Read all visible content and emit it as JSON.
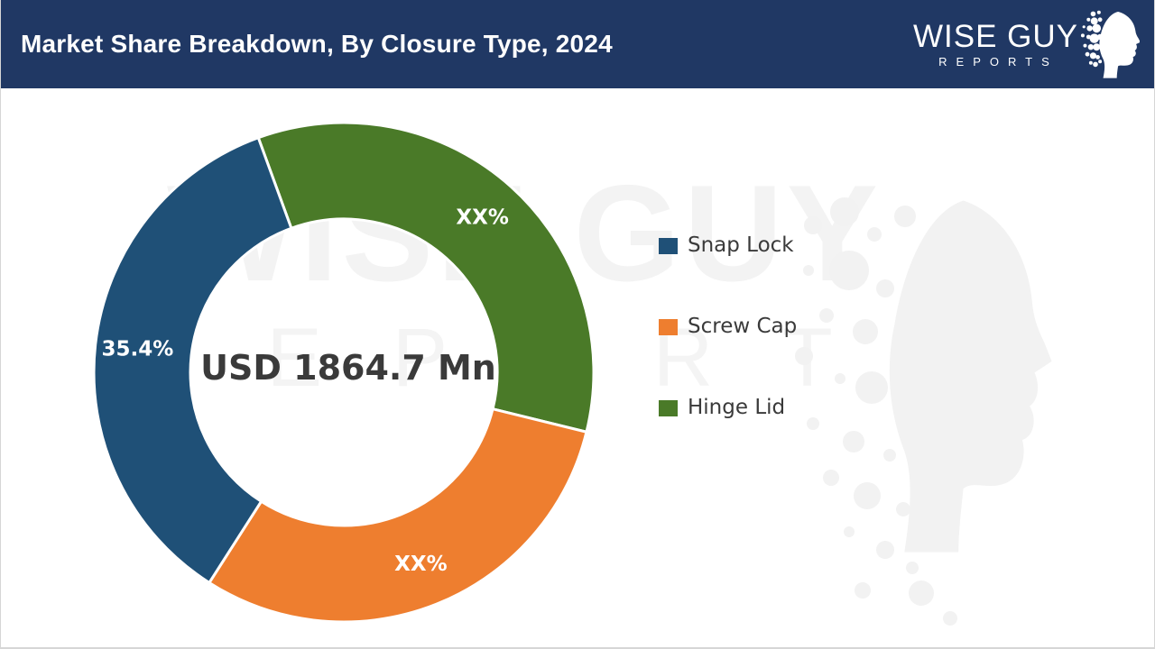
{
  "header": {
    "title": "Market Share Breakdown, By Closure Type, 2024",
    "logo": {
      "line1": "WISE GUY",
      "line2": "REPORTS"
    }
  },
  "watermark": {
    "line1": "WISE GUY",
    "line2": "REPORTS"
  },
  "colors": {
    "header_bg": "#203864",
    "title_text": "#ffffff",
    "body_text": "#3a3a3a",
    "watermark_gray": "#f2f2f2",
    "segment_divider": "#ffffff"
  },
  "chart_data": {
    "type": "pie",
    "subtype": "donut",
    "title": "Market Share Breakdown, By Closure Type, 2024",
    "center_label": "USD 1864.7 Mn",
    "start_angle_deg_from_north": -20,
    "direction": "clockwise",
    "legend_position": "right",
    "segments": [
      {
        "label": "Snap Lock",
        "value_pct": 35.4,
        "display_label": "35.4%",
        "color": "#1F5077"
      },
      {
        "label": "Screw Cap",
        "value_pct": 30.2,
        "display_label": "XX%",
        "color": "#EE7E2F"
      },
      {
        "label": "Hinge Lid",
        "value_pct": 34.4,
        "display_label": "XX%",
        "color": "#4A7A28"
      }
    ]
  }
}
